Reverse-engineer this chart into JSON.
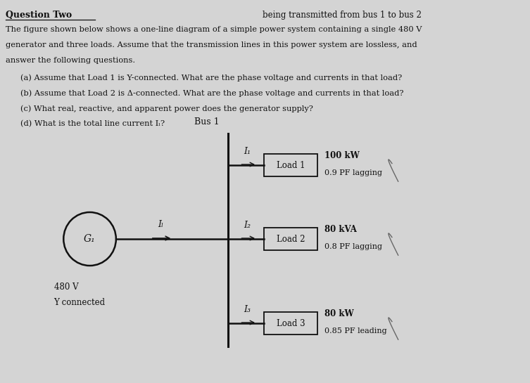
{
  "background_color": "#d4d4d4",
  "title_left": "Question Two",
  "title_right": "being transmitted from bus 1 to bus 2",
  "para_lines": [
    "The figure shown below shows a one-line diagram of a simple power system containing a single 480 V",
    "generator and three loads. Assume that the transmission lines in this power system are lossless, and",
    "answer the following questions."
  ],
  "questions": [
    "(a) Assume that Load 1 is Y-connected. What are the phase voltage and currents in that load?",
    "(b) Assume that Load 2 is Δ-connected. What are the phase voltage and currents in that load?",
    "(c) What real, reactive, and apparent power does the generator supply?",
    "(d) What is the total line current Iₗ?"
  ],
  "bus_label": "Bus 1",
  "generator_label": "G₁",
  "voltage_label": "480 V",
  "voltage_label2": "Y connected",
  "line_current_label": "Iₗ",
  "load_labels": [
    "Load 1",
    "Load 2",
    "Load 3"
  ],
  "current_labels": [
    "I₁",
    "I₂",
    "I₃"
  ],
  "load_specs": [
    [
      "100 kW",
      "0.9 PF lagging"
    ],
    [
      "80 kVA",
      "0.8 PF lagging"
    ],
    [
      "80 kW",
      "0.85 PF leading"
    ]
  ],
  "text_color": "#111111",
  "diagram_color": "#111111",
  "box_color": "#111111",
  "box_fill": "#d4d4d4"
}
